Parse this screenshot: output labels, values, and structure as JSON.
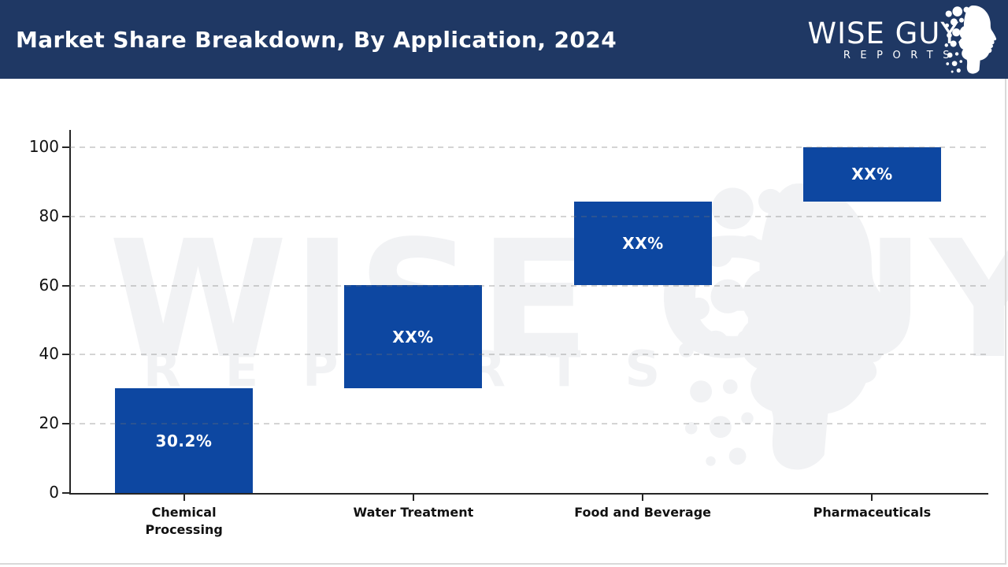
{
  "header": {
    "title": "Market Share Breakdown, By Application, 2024",
    "logo": {
      "line1": "WISE GUY",
      "line2": "REPORTS"
    }
  },
  "watermark": {
    "line1": "WISE GUY",
    "line2": "REPORTS"
  },
  "chart_data": {
    "type": "bar",
    "subtype": "waterfall-style stacked segments",
    "title": "Market Share Breakdown, By Application, 2024",
    "categories": [
      "Chemical Processing",
      "Water Treatment",
      "Food and Beverage",
      "Pharmaceuticals"
    ],
    "xtick_labels": [
      "Chemical\nProcessing",
      "Water Treatment",
      "Food and Beverage",
      "Pharmaceuticals"
    ],
    "segments": [
      {
        "category": "Chemical Processing",
        "start": 0,
        "end": 30.2,
        "label": "30.2%"
      },
      {
        "category": "Water Treatment",
        "start": 30.2,
        "end": 60.1,
        "label": "XX%"
      },
      {
        "category": "Food and Beverage",
        "start": 60.1,
        "end": 84.3,
        "label": "XX%"
      },
      {
        "category": "Pharmaceuticals",
        "start": 84.3,
        "end": 100,
        "label": "XX%"
      }
    ],
    "yticks": [
      0,
      20,
      40,
      60,
      80,
      100
    ],
    "ylim": [
      0,
      105
    ],
    "xlabel": "",
    "ylabel": "",
    "grid": true,
    "grid_style": "dashed",
    "legend": null,
    "bar_label_color": "#ffffff"
  },
  "colors": {
    "header_bg": "#1f3864",
    "bar_blue": "#0d47a1",
    "watermark": "#f1f2f4",
    "grid": "#dcdcdc",
    "axis": "#262626",
    "frame_border": "#d9d9d9"
  }
}
